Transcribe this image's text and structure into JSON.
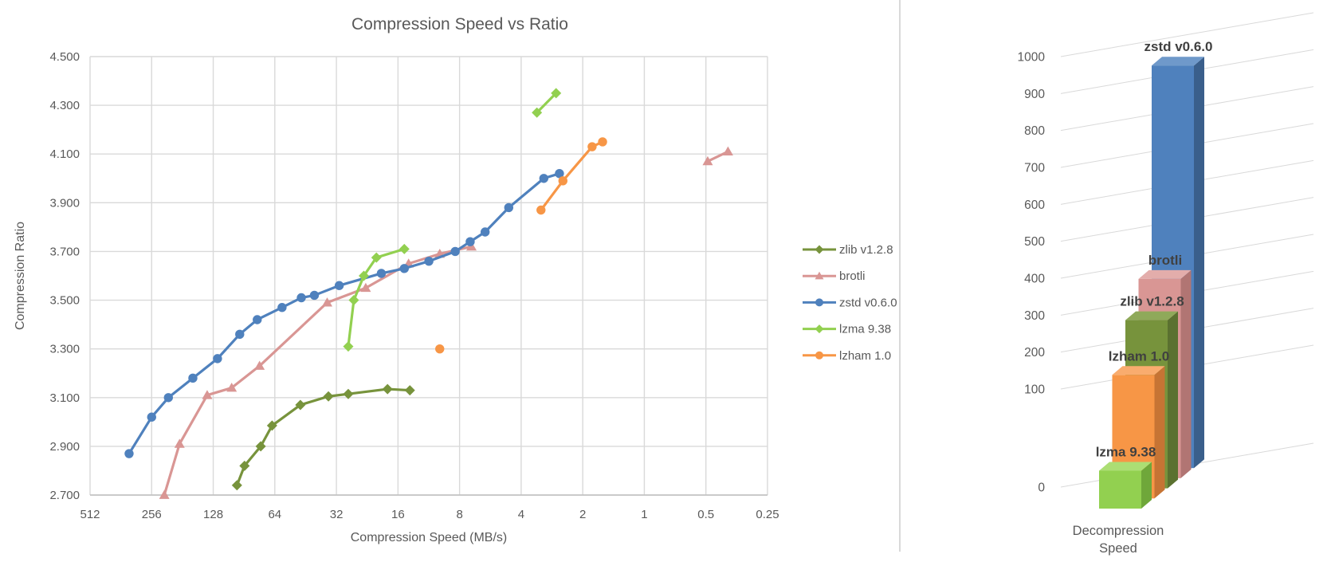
{
  "page": {
    "background": "#ffffff",
    "divider_color": "#d9d9d9",
    "text_color": "#595959",
    "gridline_color": "#d9d9d9",
    "axis_line_color": "#bfbfbf"
  },
  "chart_data": [
    {
      "type": "scatter",
      "title": "Compression Speed vs Ratio",
      "xlabel": "Compression Speed (MB/s)",
      "ylabel": "Compression Ratio",
      "x_scale": "log2-reversed",
      "x_ticks": [
        512,
        256,
        128,
        64,
        32,
        16,
        8,
        4,
        2,
        1,
        0.5,
        0.25
      ],
      "y_ticks": [
        4.5,
        4.3,
        4.1,
        3.9,
        3.7,
        3.5,
        3.3,
        3.1,
        2.9,
        2.7
      ],
      "ylim": [
        2.7,
        4.5
      ],
      "grid": true,
      "legend_position": "right",
      "series": [
        {
          "name": "zlib v1.2.8",
          "color": "#77933C",
          "marker": "diamond",
          "segments": [
            [
              [
                98,
                2.74
              ],
              [
                90,
                2.82
              ],
              [
                75,
                2.9
              ],
              [
                66,
                2.985
              ],
              [
                48,
                3.07
              ],
              [
                35,
                3.105
              ],
              [
                28,
                3.115
              ],
              [
                18,
                3.135
              ],
              [
                14,
                3.13
              ]
            ]
          ]
        },
        {
          "name": "brotli",
          "color": "#D99694",
          "marker": "triangle",
          "segments": [
            [
              [
                222,
                2.7
              ],
              [
                187,
                2.91
              ],
              [
                137,
                3.11
              ],
              [
                104,
                3.14
              ],
              [
                76,
                3.23
              ],
              [
                35.5,
                3.49
              ],
              [
                23,
                3.55
              ],
              [
                14.2,
                3.65
              ],
              [
                10,
                3.69
              ],
              [
                7,
                3.72
              ]
            ],
            [
              [
                0.49,
                4.07
              ],
              [
                0.39,
                4.11
              ]
            ]
          ]
        },
        {
          "name": "zstd v0.6.0",
          "color": "#4F81BD",
          "marker": "circle",
          "segments": [
            [
              [
                330,
                2.87
              ],
              [
                256,
                3.02
              ],
              [
                212,
                3.1
              ],
              [
                161,
                3.18
              ],
              [
                122,
                3.26
              ],
              [
                95,
                3.36
              ],
              [
                78,
                3.42
              ],
              [
                59,
                3.47
              ],
              [
                47.5,
                3.51
              ],
              [
                41,
                3.52
              ],
              [
                31,
                3.56
              ],
              [
                19.3,
                3.61
              ],
              [
                14.9,
                3.63
              ],
              [
                11.3,
                3.66
              ],
              [
                8.4,
                3.7
              ],
              [
                7.1,
                3.74
              ],
              [
                6.0,
                3.78
              ],
              [
                4.6,
                3.88
              ],
              [
                3.1,
                4.0
              ],
              [
                2.6,
                4.02
              ]
            ]
          ]
        },
        {
          "name": "lzma 9.38",
          "color": "#92D050",
          "marker": "diamond",
          "segments": [
            [
              [
                28,
                3.31
              ],
              [
                26.3,
                3.5
              ],
              [
                23.5,
                3.6
              ],
              [
                20.4,
                3.675
              ],
              [
                14.9,
                3.71
              ]
            ],
            [
              [
                3.35,
                4.27
              ],
              [
                2.7,
                4.35
              ]
            ]
          ]
        },
        {
          "name": "lzham 1.0",
          "color": "#F79646",
          "marker": "circle",
          "segments": [
            [
              [
                10,
                3.3
              ]
            ],
            [
              [
                3.2,
                3.87
              ],
              [
                2.5,
                3.99
              ],
              [
                1.8,
                4.13
              ],
              [
                1.6,
                4.15
              ]
            ]
          ]
        }
      ]
    },
    {
      "type": "bar",
      "style": "3d-column",
      "category": "Decompression Speed",
      "y_ticks": [
        1000,
        900,
        800,
        700,
        600,
        500,
        400,
        300,
        200,
        100,
        0
      ],
      "ylim": [
        0,
        1000
      ],
      "bars": [
        {
          "name": "lzma 9.38",
          "value": 95,
          "color": "#92D050",
          "top": "#ACDE74",
          "side": "#6FA73A"
        },
        {
          "name": "lzham 1.0",
          "value": 310,
          "color": "#F79646",
          "top": "#F9AC6E",
          "side": "#C67434"
        },
        {
          "name": "zlib v1.2.8",
          "value": 422,
          "color": "#77933C",
          "top": "#8FA95A",
          "side": "#5B7130"
        },
        {
          "name": "brotli",
          "value": 500,
          "color": "#D99694",
          "top": "#E3ADAB",
          "side": "#B17573"
        },
        {
          "name": "zstd v0.6.0",
          "value": 1010,
          "color": "#4F81BD",
          "top": "#6F99CA",
          "side": "#3A5F8B"
        }
      ]
    }
  ]
}
